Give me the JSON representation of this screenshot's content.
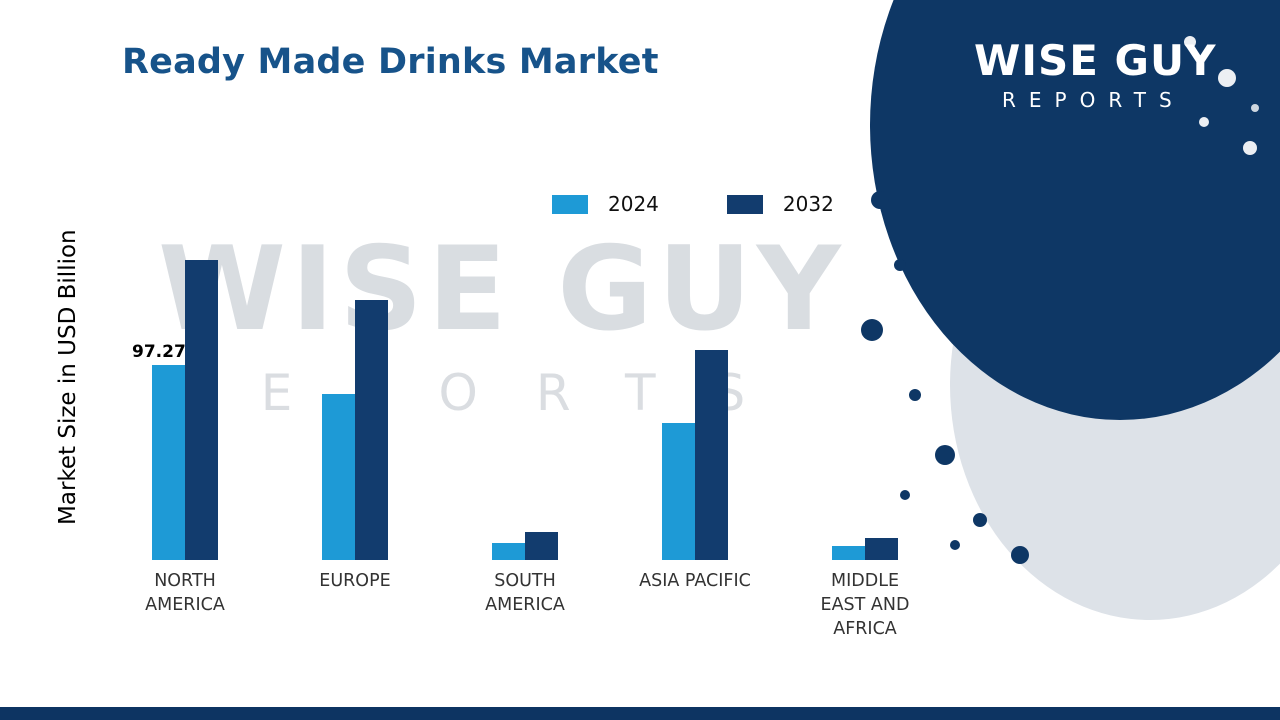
{
  "title": "Ready Made Drinks Market",
  "logo": {
    "line1": "WISE GUY",
    "line2": "REPORTS"
  },
  "watermark": {
    "line1": "WISE GUY",
    "line2": "REPORTS"
  },
  "colors": {
    "title": "#17538a",
    "series_2024": "#1e9ad6",
    "series_2032": "#123c6e",
    "logo_background": "#0e3765",
    "bottom_bar": "#0d3462",
    "watermark": "#d9dde1"
  },
  "chart_data": {
    "type": "bar",
    "title": "Ready Made Drinks Market",
    "ylabel": "Market Size in USD Billion",
    "xlabel": "",
    "categories": [
      "NORTH AMERICA",
      "EUROPE",
      "SOUTH AMERICA",
      "ASIA PACIFIC",
      "MIDDLE EAST AND AFRICA"
    ],
    "series": [
      {
        "name": "2024",
        "color": "#1e9ad6",
        "values": [
          97.27,
          83,
          8.5,
          68.5,
          7
        ]
      },
      {
        "name": "2032",
        "color": "#123c6e",
        "values": [
          150,
          130,
          14,
          105,
          11
        ]
      }
    ],
    "annotations": [
      {
        "series": "2024",
        "category": "NORTH AMERICA",
        "text": "97.27"
      }
    ],
    "ylim": [
      0,
      155
    ],
    "grid": false,
    "legend_position": "top"
  }
}
